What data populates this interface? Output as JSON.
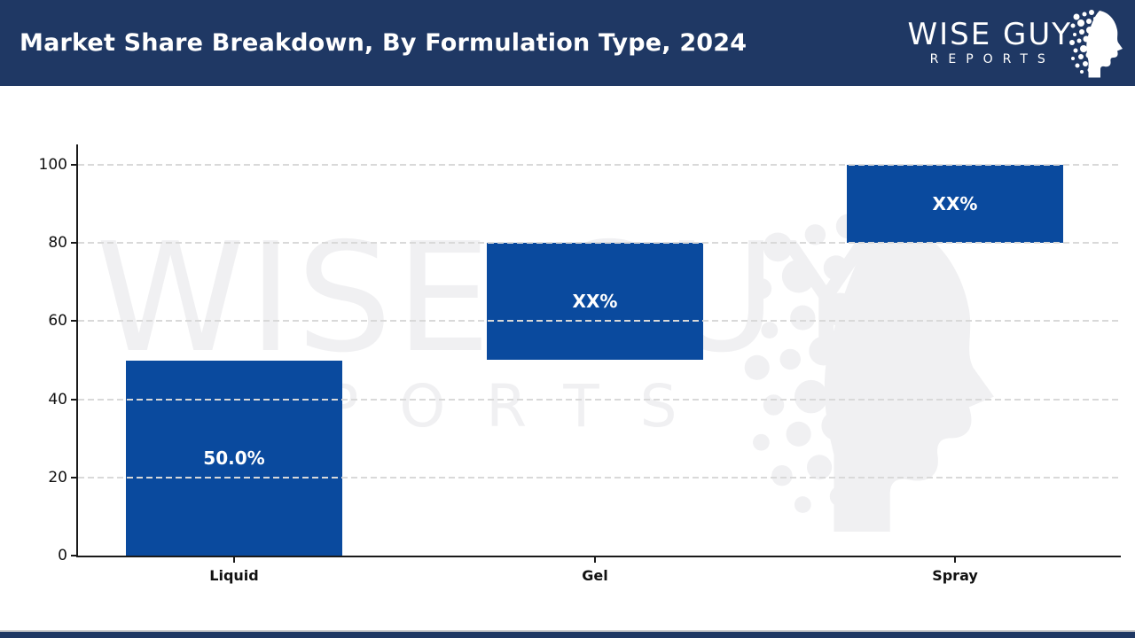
{
  "header": {
    "title": "Market Share Breakdown, By Formulation Type, 2024",
    "bg_color": "#1f3864",
    "logo": {
      "line1": "WISE GUY",
      "line2": "REPORTS"
    }
  },
  "watermark": {
    "line1": "WISE GUY",
    "line2": "REPORTS"
  },
  "footer": {
    "bg_color": "#1f3864"
  },
  "chart_data": {
    "type": "bar",
    "variant": "floating-breakdown-waterfall",
    "title": "Market Share Breakdown, By Formulation Type, 2024",
    "categories": [
      "Liquid",
      "Gel",
      "Spray"
    ],
    "series": [
      {
        "name": "Liquid",
        "start": 0,
        "end": 50,
        "label": "50.0%"
      },
      {
        "name": "Gel",
        "start": 50,
        "end": 80,
        "label": "XX%"
      },
      {
        "name": "Spray",
        "start": 80,
        "end": 100,
        "label": "XX%"
      }
    ],
    "y_ticks": [
      0,
      20,
      40,
      60,
      80,
      100
    ],
    "ylim": [
      0,
      105
    ],
    "xlabel": "",
    "ylabel": "",
    "grid": "dashed-horizontal",
    "legend": "none",
    "bar_color": "#0a4a9e",
    "bar_label_color": "#ffffff"
  }
}
